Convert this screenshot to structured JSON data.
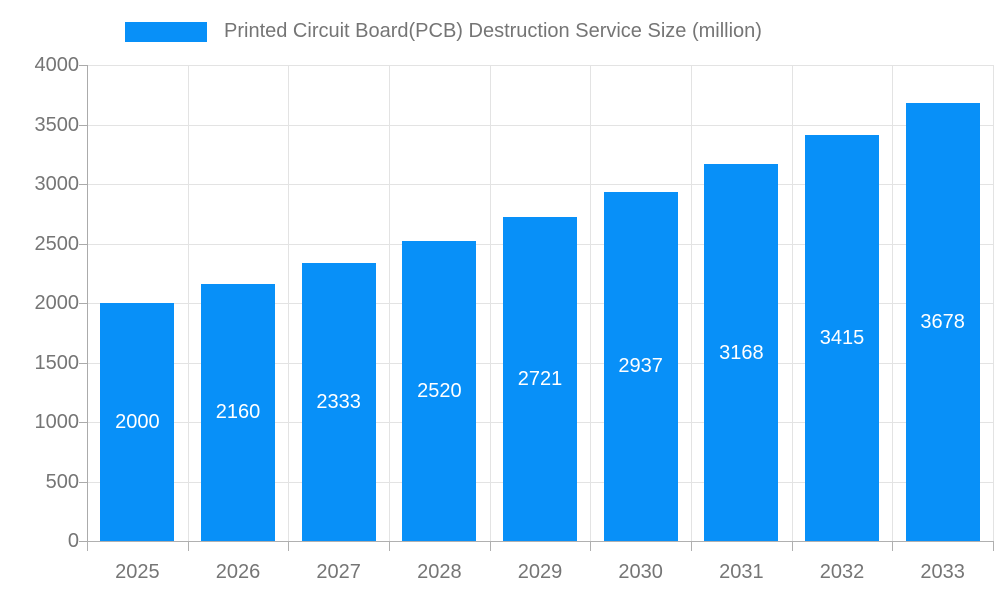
{
  "chart_data": {
    "type": "bar",
    "title": "Printed Circuit Board(PCB) Destruction Service Size (million)",
    "legend": {
      "label": "Printed Circuit Board(PCB) Destruction Service Size (million)",
      "position": "top"
    },
    "categories": [
      "2025",
      "2026",
      "2027",
      "2028",
      "2029",
      "2030",
      "2031",
      "2032",
      "2033"
    ],
    "series": [
      {
        "name": "Printed Circuit Board(PCB) Destruction Service Size (million)",
        "values": [
          2000,
          2160,
          2333,
          2520,
          2721,
          2937,
          3168,
          3415,
          3678
        ]
      }
    ],
    "data_labels": [
      "2000",
      "2160",
      "2333",
      "2520",
      "2721",
      "2937",
      "3168",
      "3415",
      "3678"
    ],
    "xlabel": "",
    "ylabel": "",
    "ylim": [
      0,
      4000
    ],
    "ytick_step": 500,
    "yticks": [
      "0",
      "500",
      "1000",
      "1500",
      "2000",
      "2500",
      "3000",
      "3500",
      "4000"
    ],
    "grid": true,
    "colors": {
      "bar": "#0890f8",
      "bar_label": "#ffffff",
      "axis_text": "#757575",
      "gridline": "#e3e3e3",
      "y_axis_line": "#ababab",
      "x_axis_line": "#b0b0b0",
      "background": "#ffffff"
    }
  }
}
